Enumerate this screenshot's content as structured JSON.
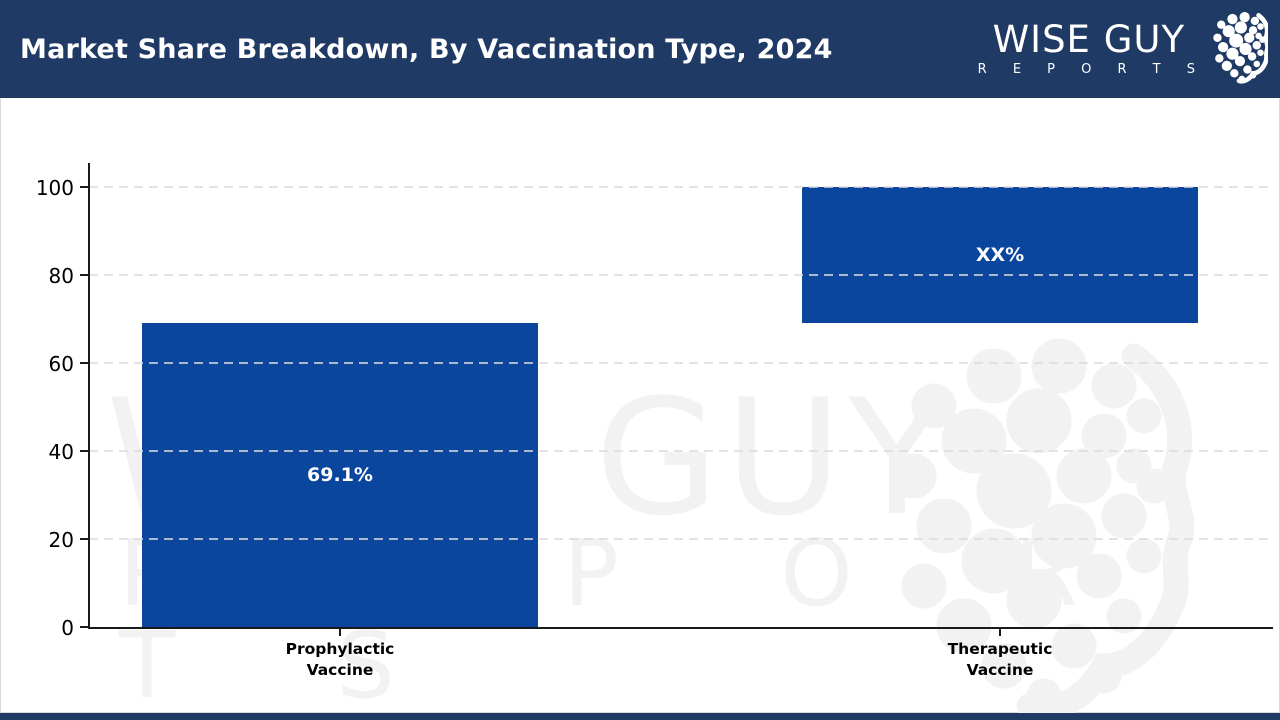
{
  "header": {
    "title": "Market Share Breakdown, By Vaccination Type, 2024",
    "logo": {
      "wordmark": "WISE GUY",
      "subtext": "R E P O R T S"
    }
  },
  "watermark": {
    "wordmark": "WISE GUY",
    "subtext": "R E P O R T S"
  },
  "colors": {
    "header_bg": "#203a66",
    "footer_bg": "#203a66",
    "bar_fill": "#0a469e",
    "bar_label_text": "#ffffff",
    "gridline": "#d9d9d9",
    "axis": "#1a1a1a",
    "watermark": "#f2f2f2",
    "canvas_bg": "#ffffff"
  },
  "chart_data": {
    "type": "bar",
    "subtype": "floating / stacked-waterfall: second bar spans from first bar's top (69.1) up to 100",
    "title": "Market Share Breakdown, By Vaccination Type, 2024",
    "categories": [
      "Prophylactic\nVaccine",
      "Therapeutic\nVaccine"
    ],
    "bars": [
      {
        "category": "Prophylactic Vaccine",
        "start": 0,
        "end": 69.1,
        "label": "69.1%",
        "implied_value": 69.1
      },
      {
        "category": "Therapeutic Vaccine",
        "start": 69.1,
        "end": 100,
        "label": "XX%",
        "implied_value": 30.9
      }
    ],
    "ylim": [
      0,
      100
    ],
    "yticks": [
      0,
      20,
      40,
      60,
      80,
      100
    ],
    "xlabel": "",
    "ylabel": "",
    "grid": "horizontal dashed gridlines at y ticks, drawn over bars",
    "legend": "none"
  }
}
